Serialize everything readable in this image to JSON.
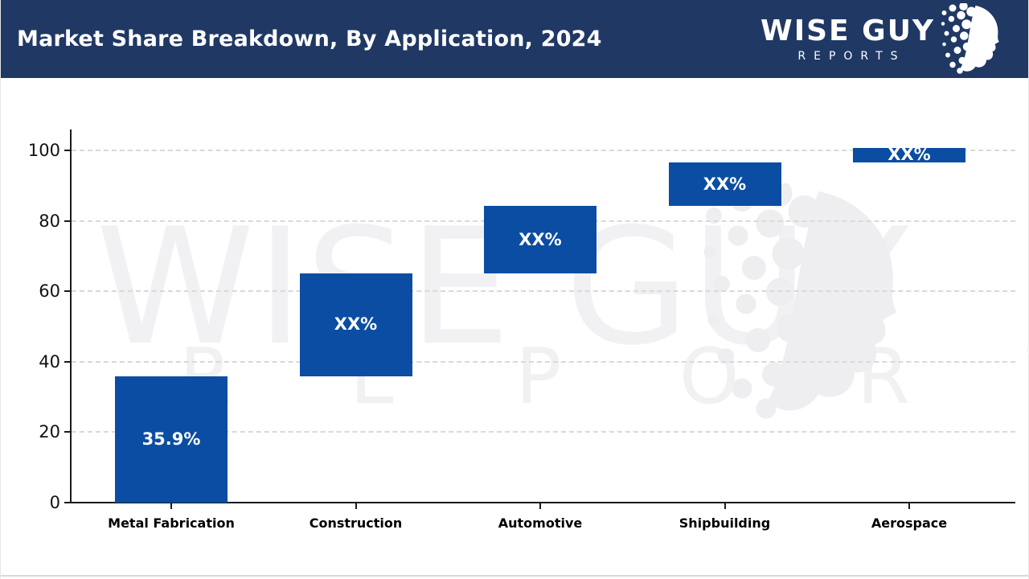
{
  "header": {
    "title": "Market Share Breakdown, By Application, 2024",
    "logo": {
      "primary": "WISE GUY",
      "secondary": "REPORTS"
    }
  },
  "watermark": {
    "primary": "WISE GUY",
    "secondary": "R E P O R T S"
  },
  "colors": {
    "header_bg": "#203864",
    "bar": "#0b4da2",
    "grid": "#d9d9d9",
    "axis": "#1a1a1a",
    "bar_label": "#ffffff",
    "watermark": "#f1f1f3"
  },
  "chart_data": {
    "type": "bar",
    "variant": "waterfall",
    "title": "Market Share Breakdown, By Application, 2024",
    "categories": [
      "Metal Fabrication",
      "Construction",
      "Automotive",
      "Shipbuilding",
      "Aerospace"
    ],
    "bars": [
      {
        "category": "Metal Fabrication",
        "start": 0,
        "end": 35.9,
        "label": "35.9%"
      },
      {
        "category": "Construction",
        "start": 35.9,
        "end": 65.1,
        "label": "XX%"
      },
      {
        "category": "Automotive",
        "start": 65.1,
        "end": 84.2,
        "label": "XX%"
      },
      {
        "category": "Shipbuilding",
        "start": 84.2,
        "end": 96.6,
        "label": "XX%"
      },
      {
        "category": "Aerospace",
        "start": 96.6,
        "end": 100.7,
        "label": "XX%"
      }
    ],
    "y_ticks": [
      0,
      20,
      40,
      60,
      80,
      100
    ],
    "ylim": [
      0,
      106
    ],
    "grid": "horizontal-dashed",
    "legend": "none",
    "xlabel": "",
    "ylabel": ""
  }
}
